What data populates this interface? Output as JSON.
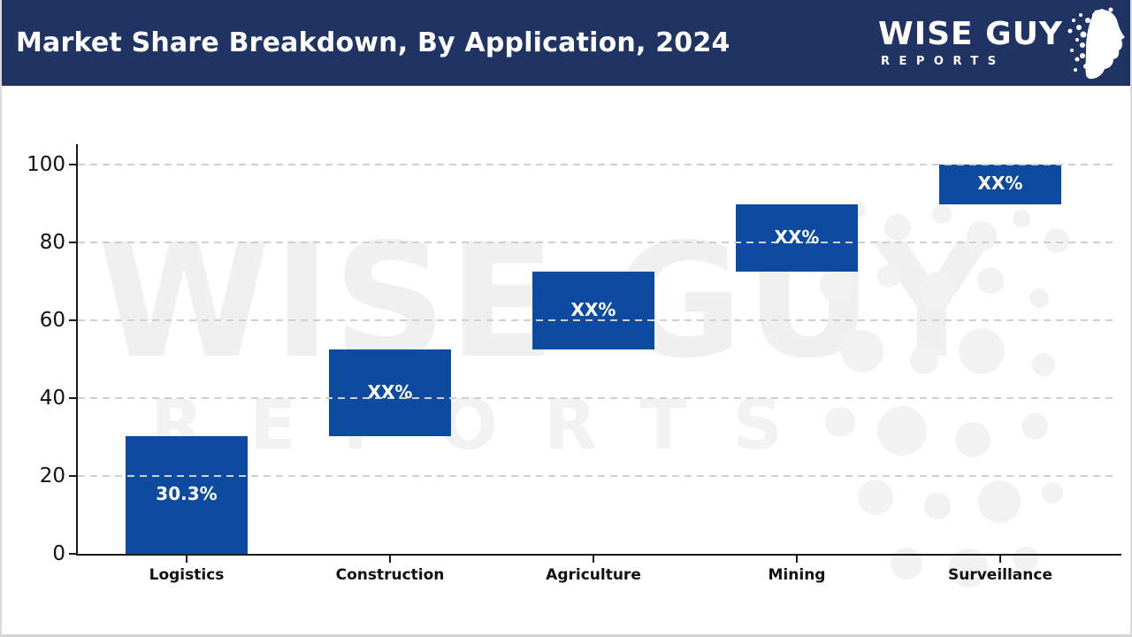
{
  "header": {
    "title": "Market Share Breakdown, By Application, 2024",
    "logo": {
      "name": "WISE GUY",
      "sub": "REPORTS"
    }
  },
  "watermark": {
    "line1": "WISE GUY",
    "line2": "REPORTS"
  },
  "colors": {
    "header_bg": "#1F3463",
    "bar": "#0C4BA0",
    "grid": "#d0d0d0",
    "axis": "#1a1a1a",
    "watermark": "#f0f0f0"
  },
  "chart_data": {
    "type": "bar",
    "subtype": "waterfall",
    "title": "Market Share Breakdown, By Application, 2024",
    "categories": [
      "Logistics",
      "Construction",
      "Agriculture",
      "Mining",
      "Surveillance"
    ],
    "bars": [
      {
        "category": "Logistics",
        "label": "30.3%",
        "start": 0,
        "end": 30.3
      },
      {
        "category": "Construction",
        "label": "XX%",
        "start": 30.3,
        "end": 52.5
      },
      {
        "category": "Agriculture",
        "label": "XX%",
        "start": 52.5,
        "end": 72.5
      },
      {
        "category": "Mining",
        "label": "XX%",
        "start": 72.5,
        "end": 89.8
      },
      {
        "category": "Surveillance",
        "label": "XX%",
        "start": 89.8,
        "end": 100
      }
    ],
    "yticks": [
      0,
      20,
      40,
      60,
      80,
      100
    ],
    "ylim": [
      0,
      105
    ],
    "xlabel": "",
    "ylabel": "",
    "bar_color": "#0C4BA0",
    "grid": "horizontal-dashed",
    "legend": "none",
    "value_labels_position": "inside-center"
  }
}
